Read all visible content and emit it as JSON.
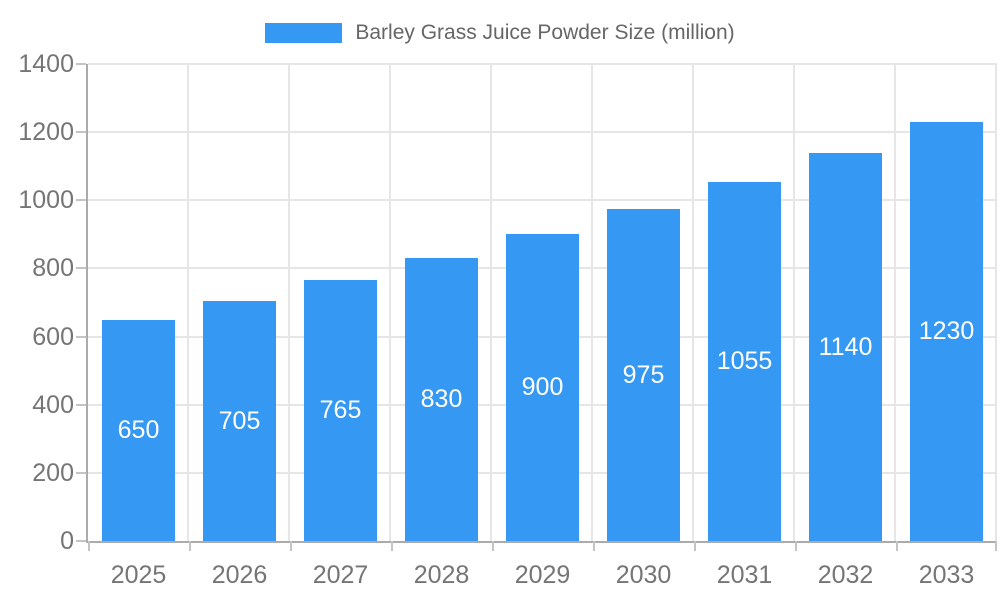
{
  "legend": {
    "label": "Barley Grass Juice Powder Size (million)"
  },
  "colors": {
    "bar": "#3598F2",
    "grid": "#E6E6E6",
    "axis": "#ABABAB",
    "tick": "#C4C4C4",
    "tick_label": "#757575",
    "legend_text": "#666666",
    "value_label": "#FFFFFF",
    "background": "#FFFFFF"
  },
  "chart_data": {
    "type": "bar",
    "title": "",
    "legend_label": "Barley Grass Juice Powder Size (million)",
    "categories": [
      "2025",
      "2026",
      "2027",
      "2028",
      "2029",
      "2030",
      "2031",
      "2032",
      "2033"
    ],
    "values": [
      650,
      705,
      765,
      830,
      900,
      975,
      1055,
      1140,
      1230
    ],
    "xlabel": "",
    "ylabel": "",
    "ylim": [
      0,
      1400
    ],
    "yticks": [
      0,
      200,
      400,
      600,
      800,
      1000,
      1200,
      1400
    ],
    "grid": true,
    "legend_position": "top",
    "value_labels": "inside-center-white"
  }
}
